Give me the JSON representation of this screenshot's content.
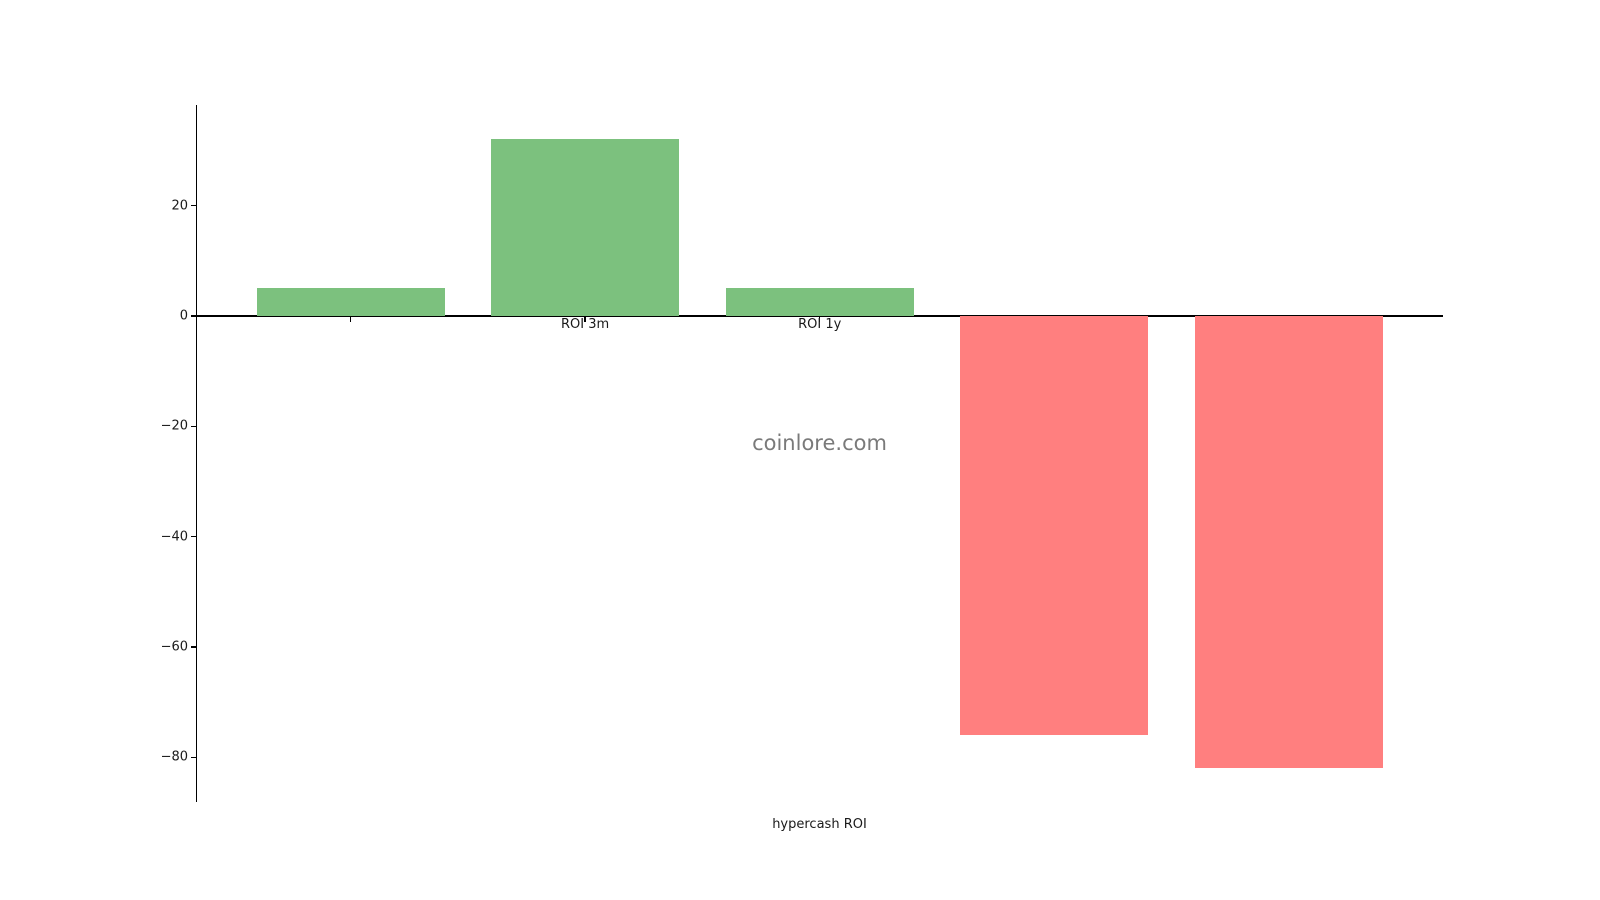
{
  "page": {
    "background": "#ffffff",
    "text_color": "#1a1a1a",
    "watermark": {
      "text": "coinlore.com",
      "color": "#7a7a7a"
    }
  },
  "chart_data": {
    "type": "bar",
    "title": "",
    "xlabel": "hypercash ROI",
    "ylabel": "",
    "bars": [
      {
        "label": "",
        "value": 5,
        "color": "#7cc17e"
      },
      {
        "label": "ROI 3m",
        "value": 32,
        "color": "#7cc17e"
      },
      {
        "label": "ROI 1y",
        "value": 5,
        "color": "#7cc17e"
      },
      {
        "label": "",
        "value": -76,
        "color": "#ff7f7f"
      },
      {
        "label": "",
        "value": -82,
        "color": "#ff7f7f"
      }
    ],
    "xticks_shown": [
      0,
      1,
      2
    ],
    "yticks": [
      {
        "value": 20,
        "label": "20"
      },
      {
        "value": 0,
        "label": "0"
      },
      {
        "value": -20,
        "label": "−20"
      },
      {
        "value": -40,
        "label": "−40"
      },
      {
        "value": -60,
        "label": "−60"
      },
      {
        "value": -80,
        "label": "−80"
      }
    ],
    "ylim": [
      -88,
      38
    ],
    "grid": false,
    "legend": null,
    "positive_color": "#7cc17e",
    "negative_color": "#ff7f7f"
  }
}
